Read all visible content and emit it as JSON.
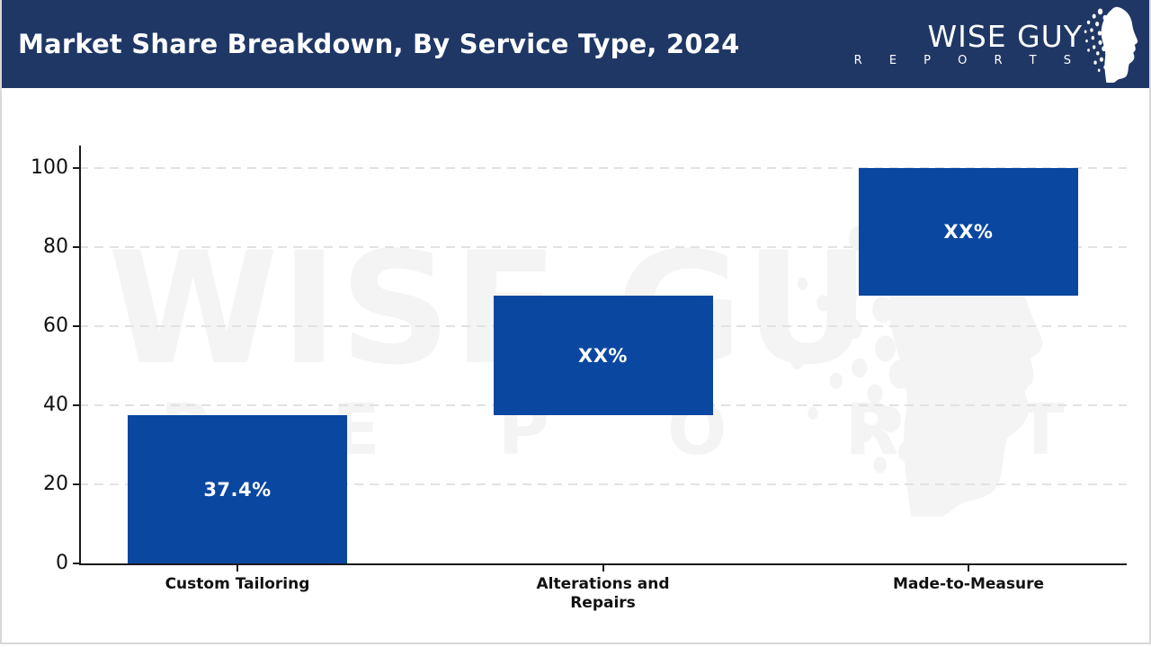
{
  "header": {
    "title": "Market Share Breakdown, By Service Type, 2024",
    "background_color": "#1F3765",
    "logo": {
      "wordmark": "WISE GUY",
      "subtitle": "R E P O R T S",
      "face_icon": "dotted-face-profile"
    }
  },
  "watermark": {
    "wordmark": "WISE GUY",
    "subtitle": "R E P O R T S",
    "face_icon": "dotted-face-profile",
    "color": "#F4F4F4"
  },
  "chart_data": {
    "type": "bar",
    "subtype": "waterfall",
    "title": "Market Share Breakdown, By Service Type, 2024",
    "categories": [
      "Custom Tailoring",
      "Alterations and Repairs",
      "Made-to-Measure"
    ],
    "segments": [
      {
        "category": "Custom Tailoring",
        "start": 0,
        "end": 37.4,
        "label": "37.4%"
      },
      {
        "category": "Alterations and Repairs",
        "start": 37.4,
        "end": 67.7,
        "label": "XX%"
      },
      {
        "category": "Made-to-Measure",
        "start": 67.7,
        "end": 100,
        "label": "XX%"
      }
    ],
    "xlabel": "",
    "ylabel": "",
    "ylim": [
      0,
      100
    ],
    "yticks": [
      0,
      20,
      40,
      60,
      80,
      100
    ],
    "grid": "horizontal dashed",
    "grid_color": "#E2E2E2",
    "bar_color": "#0A47A1",
    "bar_label_color": "#FFFFFF",
    "legend": "none"
  }
}
